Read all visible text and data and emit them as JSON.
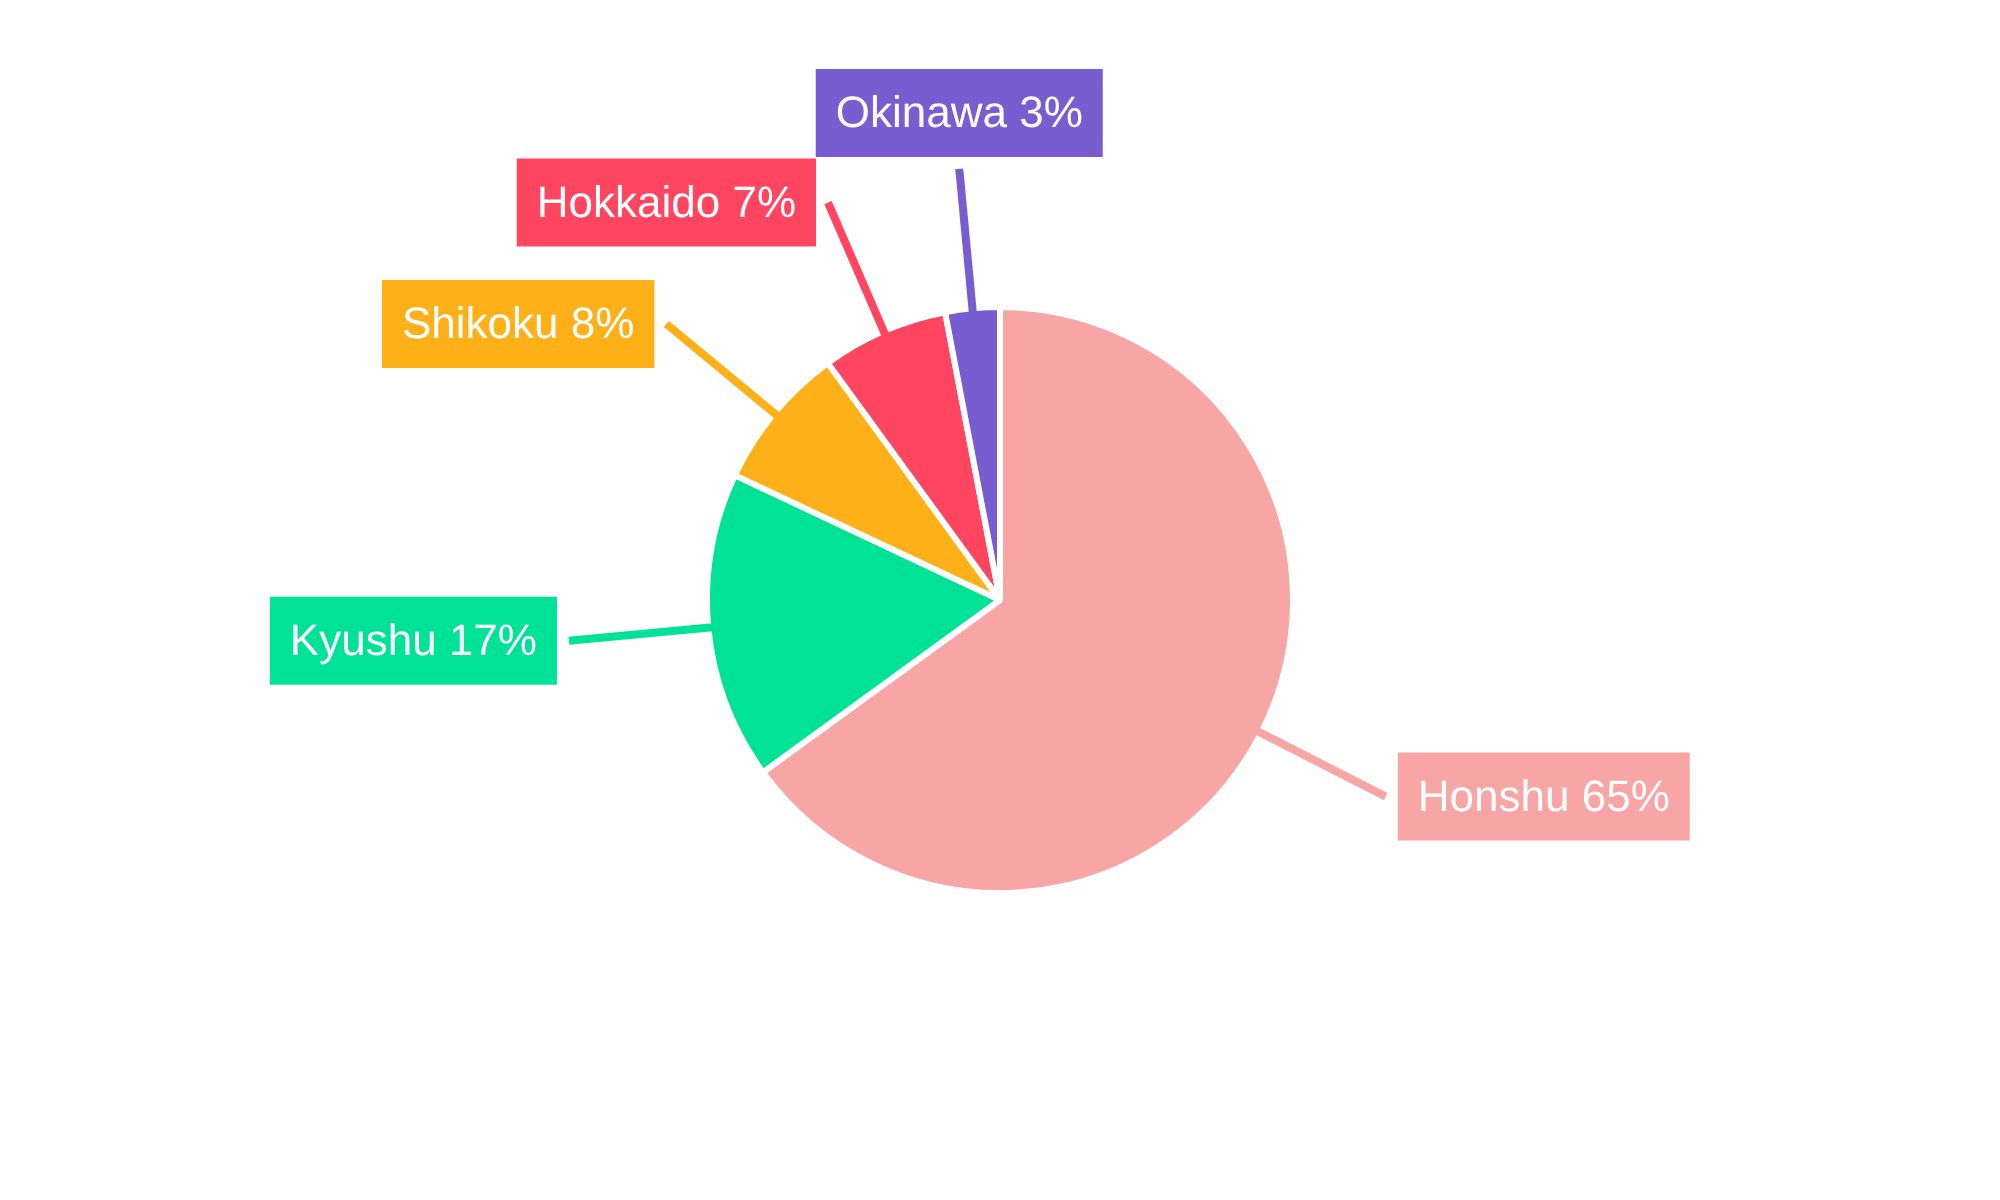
{
  "chart_data": {
    "type": "pie",
    "categories": [
      "Honshu",
      "Kyushu",
      "Shikoku",
      "Hokkaido",
      "Okinawa"
    ],
    "values": [
      65,
      17,
      8,
      7,
      3
    ],
    "value_labels": [
      "65%",
      "17%",
      "8%",
      "7%",
      "3%"
    ],
    "colors": [
      "#f8a5a5",
      "#00e396",
      "#feb019",
      "#ff4560",
      "#775dd0"
    ],
    "legend": false
  }
}
